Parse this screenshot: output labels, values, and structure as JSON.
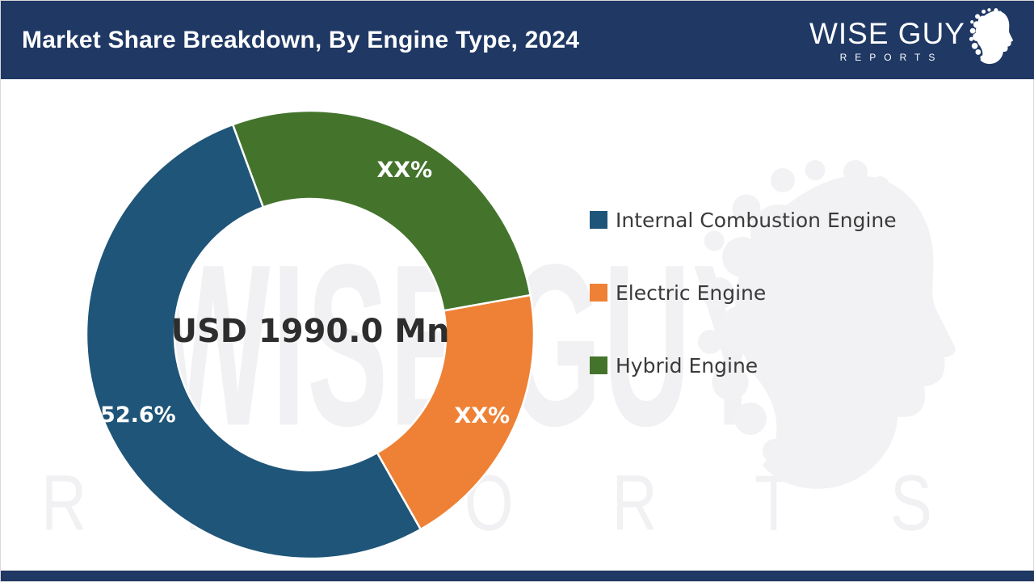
{
  "header": {
    "title": "Market Share Breakdown, By Engine Type, 2024",
    "bg_color": "#1f3864",
    "logo": {
      "line1": "WISE GUY",
      "line2": "REPORTS",
      "face_icon": "face-profile-dots-icon",
      "text_color": "#ffffff"
    }
  },
  "chart_data": {
    "type": "pie",
    "variant": "donut",
    "title": "Market Share Breakdown, By Engine Type, 2024",
    "center_label": "USD 1990.0 Mn",
    "legend_position": "right",
    "series": [
      {
        "name": "Internal Combustion Engine",
        "value_pct": 52.6,
        "label": "52.6%",
        "color": "#1f5578"
      },
      {
        "name": "Electric Engine",
        "value_pct": 19.6,
        "label": "XX%",
        "color": "#ee8135"
      },
      {
        "name": "Hybrid Engine",
        "value_pct": 27.8,
        "label": "XX%",
        "color": "#44742c"
      }
    ],
    "start_angle_deg_clockwise_from_top": 150.4,
    "draw_order": [
      0,
      2,
      1
    ],
    "geometry": {
      "outer_radius": 277,
      "inner_radius": 168,
      "label_radius": 235
    }
  },
  "watermark": {
    "line1": "WISE GUY",
    "line2": "R E P O R T S",
    "text_color": "#f1f1f4",
    "face_color": "#f2f2f4"
  },
  "colors": {
    "header_bg": "#1f3864",
    "footer_bg": "#1f3864",
    "center_label_color": "#2d2d2d",
    "legend_text_color": "#3a3a3a",
    "slice_label_color": "#ffffff",
    "canvas_border": "#d9d9d9"
  }
}
